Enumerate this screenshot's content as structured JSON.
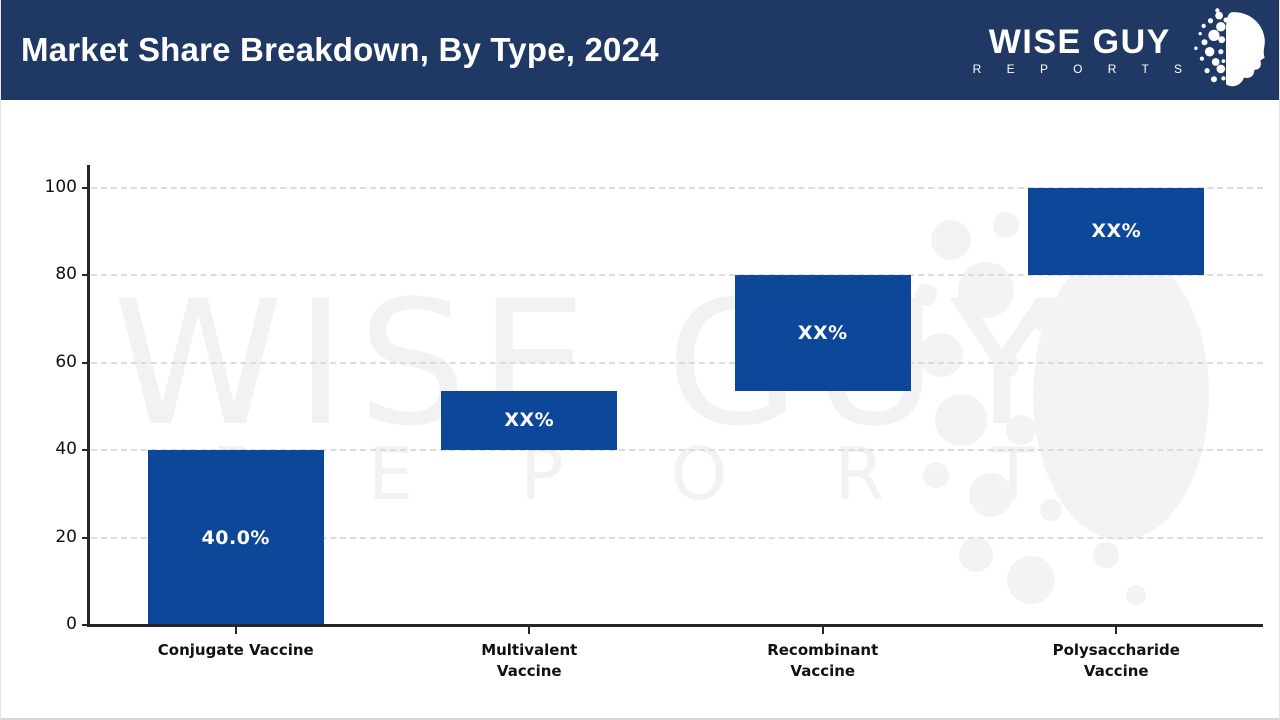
{
  "header": {
    "title": "Market Share Breakdown, By Type, 2024",
    "logo": {
      "line1": "WISE GUY",
      "line2": "R E P O R T S"
    }
  },
  "watermark": {
    "line1": "WISE GUY",
    "line2": "R E P O R T S"
  },
  "colors": {
    "header_bg": "#1f3864",
    "bar": "#0d4799",
    "axis": "#262626",
    "grid": "#dcdcdc",
    "bar_label": "#ffffff",
    "watermark": "#f2f2f2"
  },
  "chart_data": {
    "type": "bar",
    "subtype": "waterfall",
    "title": "Market Share Breakdown, By Type, 2024",
    "xlabel": "",
    "ylabel": "",
    "ylim": [
      0,
      100
    ],
    "yticks": [
      0,
      20,
      40,
      60,
      80,
      100
    ],
    "grid": "horizontal-dashed",
    "legend": "none",
    "categories": [
      "Conjugate Vaccine",
      "Multivalent Vaccine",
      "Recombinant Vaccine",
      "Polysaccharide Vaccine"
    ],
    "category_label_lines": [
      [
        "Conjugate Vaccine"
      ],
      [
        "Multivalent",
        "Vaccine"
      ],
      [
        "Recombinant",
        "Vaccine"
      ],
      [
        "Polysaccharide",
        "Vaccine"
      ]
    ],
    "values": [
      40,
      13.5,
      26.5,
      20
    ],
    "segments": [
      {
        "category": "Conjugate Vaccine",
        "start": 0,
        "end": 40,
        "label": "40.0%"
      },
      {
        "category": "Multivalent Vaccine",
        "start": 40,
        "end": 53.5,
        "label": "XX%"
      },
      {
        "category": "Recombinant Vaccine",
        "start": 53.5,
        "end": 80,
        "label": "XX%"
      },
      {
        "category": "Polysaccharide Vaccine",
        "start": 80,
        "end": 100,
        "label": "XX%"
      }
    ]
  }
}
